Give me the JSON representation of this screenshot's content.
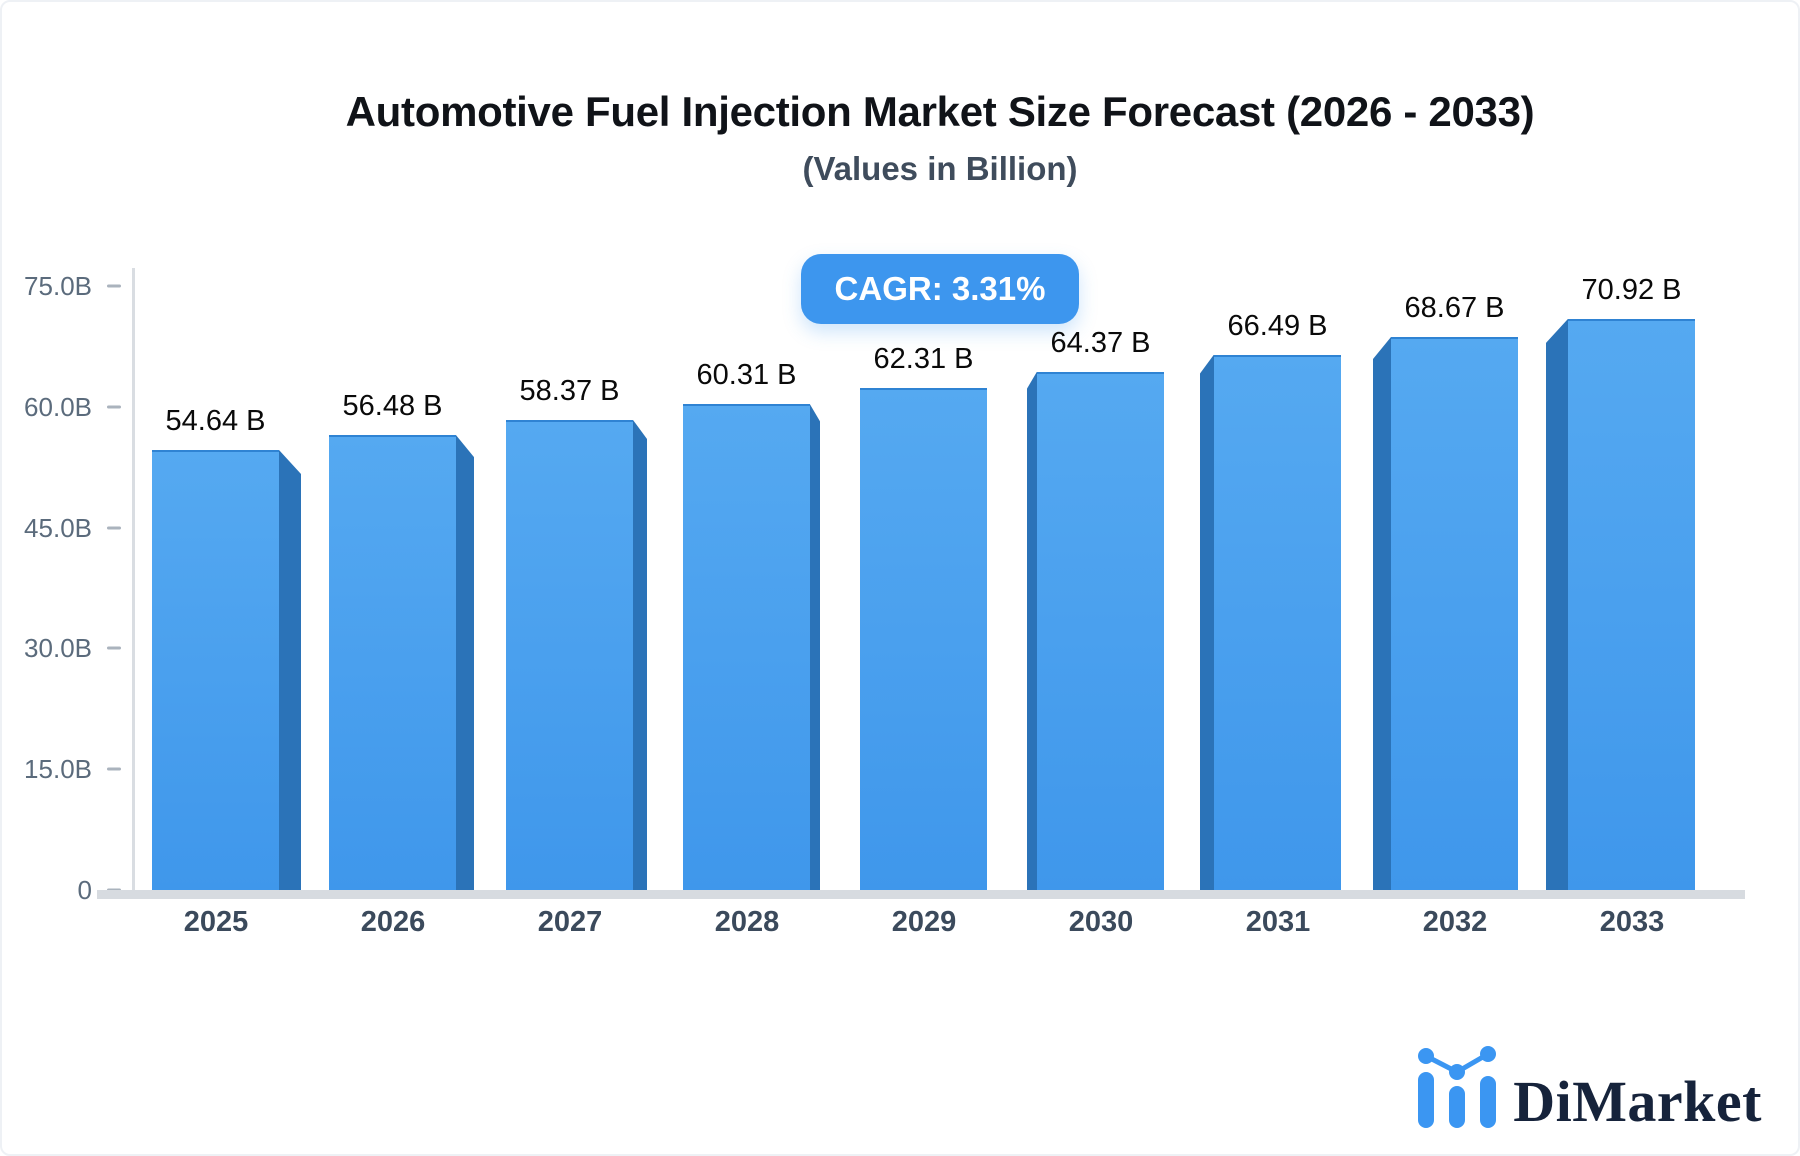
{
  "chart_data": {
    "type": "bar",
    "style": "3d-column",
    "title": "Automotive Fuel Injection Market Size Forecast (2026 - 2033)",
    "subtitle": "(Values in Billion)",
    "badge": "CAGR: 3.31%",
    "categories": [
      "2025",
      "2026",
      "2027",
      "2028",
      "2029",
      "2030",
      "2031",
      "2032",
      "2033"
    ],
    "values": [
      54.64,
      56.48,
      58.37,
      60.31,
      62.31,
      64.37,
      66.49,
      68.67,
      70.92
    ],
    "value_labels": [
      "54.64 B",
      "56.48 B",
      "58.37 B",
      "60.31 B",
      "62.31 B",
      "64.37 B",
      "66.49 B",
      "68.67 B",
      "70.92 B"
    ],
    "unit": "Billion",
    "xlabel": "",
    "ylabel": "",
    "ylim": [
      0,
      75
    ],
    "yticks": [
      {
        "v": 0,
        "label": "0"
      },
      {
        "v": 15,
        "label": "15.0B"
      },
      {
        "v": 30,
        "label": "30.0B"
      },
      {
        "v": 45,
        "label": "45.0B"
      },
      {
        "v": 60,
        "label": "60.0B"
      },
      {
        "v": 75,
        "label": "75.0B"
      }
    ],
    "grid": false,
    "legend": false
  },
  "branding": {
    "name": "DiMarket",
    "icon": "bar-chart-logo-icon"
  },
  "colors": {
    "bar_face_top": "#55a9f1",
    "bar_face_bottom": "#3f97eb",
    "bar_face_edge": "#2f83d3",
    "bar_side": "#2b73b8",
    "badge_bg": "#3d96ee",
    "badge_text": "#ffffff",
    "axis_line": "#d9dde2",
    "baseline": "#d7dbe0",
    "tick_label": "#5b6b7c",
    "x_label": "#3b4a5c",
    "value_label": "#0a0a0a",
    "title": "#101318",
    "subtitle": "#3f4c5c",
    "logo_text": "#16233b",
    "logo_blue": "#3b96f2"
  }
}
